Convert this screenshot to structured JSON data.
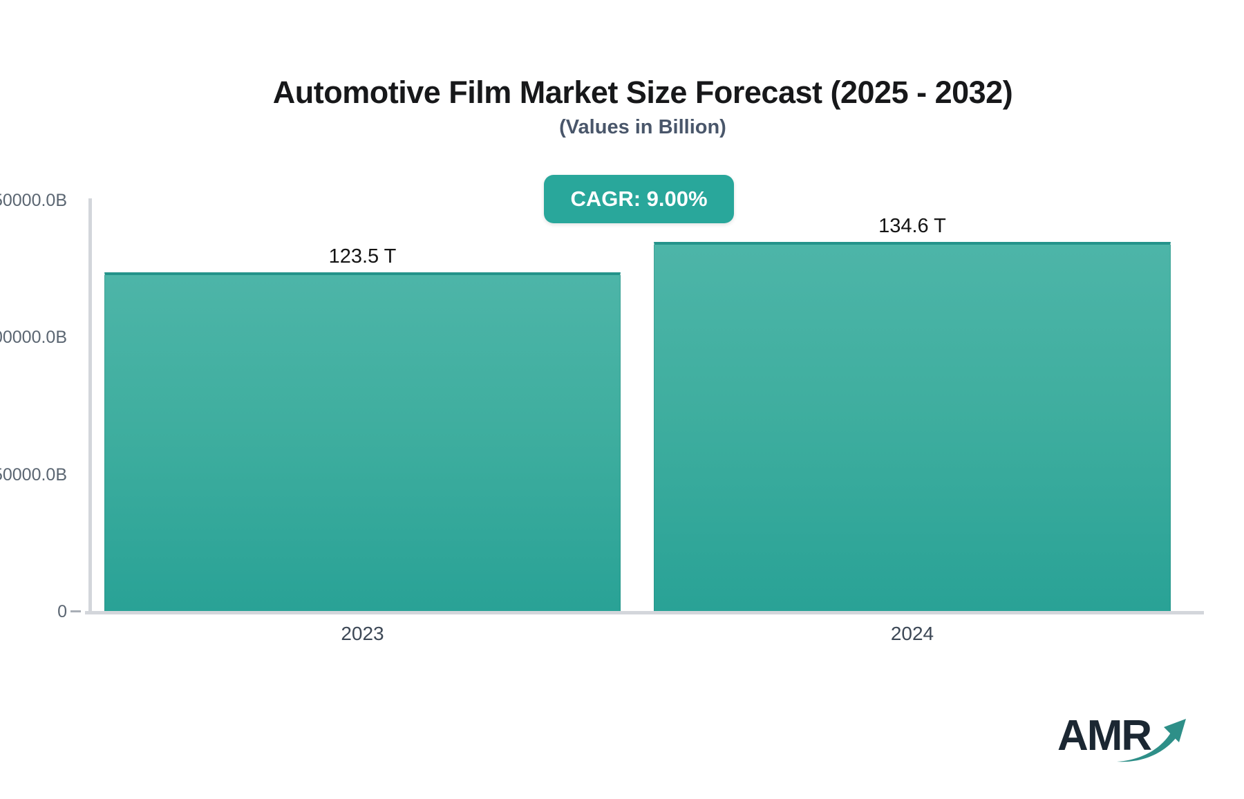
{
  "header": {
    "title": "Automotive Film Market Size Forecast (2025 - 2032)",
    "subtitle": "(Values in Billion)"
  },
  "badge": {
    "label": "CAGR: 9.00%"
  },
  "chart_data": {
    "type": "bar",
    "title": "Automotive Film Market Size Forecast (2025 - 2032)",
    "subtitle": "(Values in Billion)",
    "unit": "Billion",
    "categories": [
      "2023",
      "2024"
    ],
    "values": [
      123500,
      134600
    ],
    "value_labels": [
      "123.5 T",
      "134.6 T"
    ],
    "cagr": "9.00%",
    "ylim": [
      0,
      150000
    ],
    "ytick_step": 50000,
    "ytick_labels_visible": [
      "50000.0B",
      "00000.0B",
      "50000.0B",
      "0"
    ],
    "grid": false,
    "legend": false,
    "bar_color_top": "#4db5a8",
    "bar_color_bottom": "#29a296",
    "bar_top_edge_color": "#24938a",
    "accent_color": "#29a79b",
    "axis_line_color": "#d3d6db",
    "tick_label_color": "#5b6672"
  },
  "logo": {
    "text": "AMR",
    "arrow_color": "#2e8f88"
  }
}
